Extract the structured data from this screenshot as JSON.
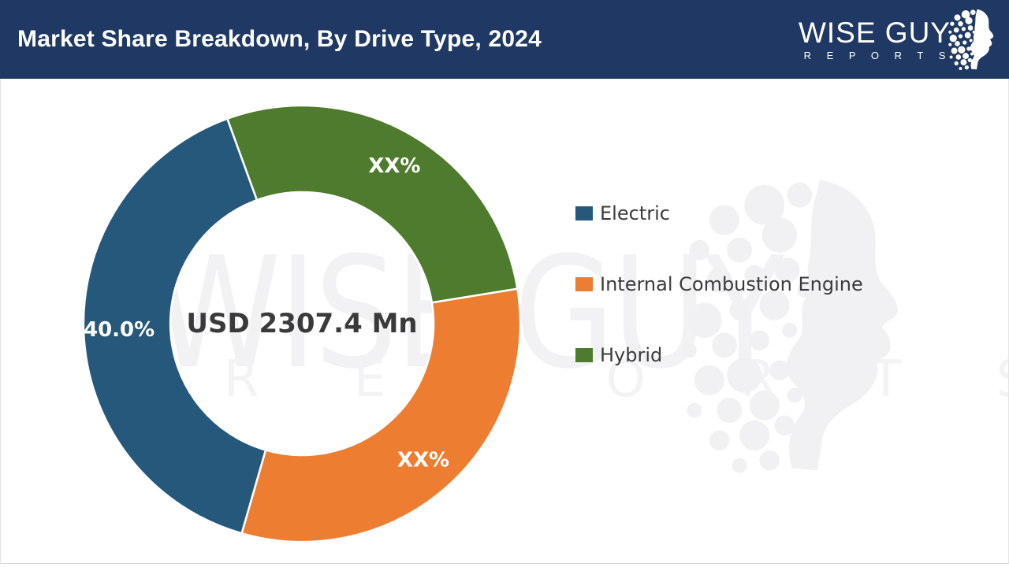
{
  "header": {
    "title": "Market Share Breakdown, By Drive Type, 2024",
    "bg_color": "#1F3864",
    "logo": {
      "line1": "WISE GUY",
      "line2": "R E P O R T S"
    }
  },
  "watermark": {
    "line1": "WISE GUY",
    "line2": "R E P O R T S"
  },
  "colors": {
    "header_navy": "#1F3864",
    "electric_blue": "#26587C",
    "ice_orange": "#ED7D31",
    "hybrid_green": "#4E7B2D",
    "text_dark": "#3A3A3A",
    "watermark_gray": "#F2F2F4",
    "border_gray": "#D6D6D6"
  },
  "chart_data": {
    "type": "pie",
    "subtype": "donut",
    "title": "Market Share Breakdown, By Drive Type, 2024",
    "center_label": "USD 2307.4 Mn",
    "start_angle_deg_cw_from_top": 340,
    "outer_radius": 277,
    "inner_radius": 167,
    "label_radius": 232,
    "slices_draw_order": [
      {
        "name": "Hybrid",
        "pct": 28,
        "slice_label": "XX%",
        "color": "#4E7B2D"
      },
      {
        "name": "Internal Combustion Engine",
        "pct": 32,
        "slice_label": "XX%",
        "color": "#ED7D31"
      },
      {
        "name": "Electric",
        "pct": 40,
        "slice_label": "40.0%",
        "color": "#26587C"
      }
    ],
    "legend_position": "right",
    "legend": [
      {
        "label": "Electric",
        "color": "#26587C"
      },
      {
        "label": "Internal Combustion Engine",
        "color": "#ED7D31"
      },
      {
        "label": "Hybrid",
        "color": "#4E7B2D"
      }
    ]
  }
}
